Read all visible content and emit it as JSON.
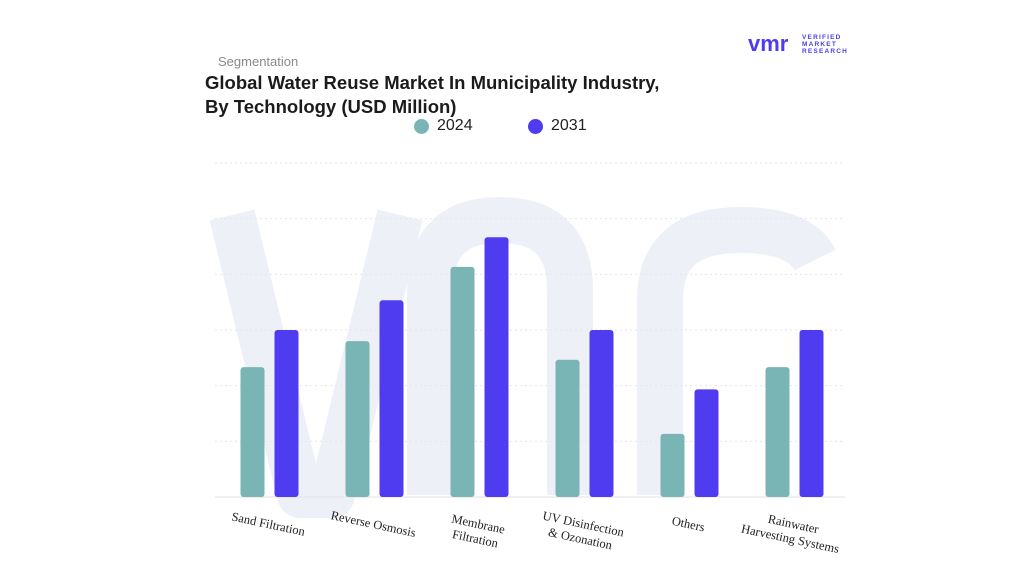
{
  "header": {
    "subtitle": "Segmentation",
    "title_line1": "Global Water Reuse Market In Municipality Industry,",
    "title_line2": "By Technology (USD Million)"
  },
  "logo": {
    "mark": "vmr",
    "line1": "VERIFIED",
    "line2": "MARKET",
    "line3": "RESEARCH"
  },
  "colors": {
    "series_2024": "#7ab5b5",
    "series_2031": "#4f3cf0",
    "grid": "#e6e6e6",
    "watermark": "#eef0f8"
  },
  "chart_data": {
    "type": "bar",
    "title": "Global Water Reuse Market In Municipality Industry, By Technology (USD Million)",
    "categories": [
      [
        "Sand Filtration"
      ],
      [
        "Reverse Osmosis"
      ],
      [
        "Membrane",
        "Filtration"
      ],
      [
        "UV Disinfection",
        "& Ozonation"
      ],
      [
        "Others"
      ],
      [
        "Rainwater",
        "Harvesting Systems"
      ]
    ],
    "series": [
      {
        "name": "2024",
        "values": [
          35,
          42,
          62,
          37,
          17,
          35
        ]
      },
      {
        "name": "2031",
        "values": [
          45,
          53,
          70,
          45,
          29,
          45
        ]
      }
    ],
    "xlabel": "",
    "ylabel": "",
    "ylim": [
      0,
      90
    ],
    "grid": true,
    "legend": "top-center"
  }
}
